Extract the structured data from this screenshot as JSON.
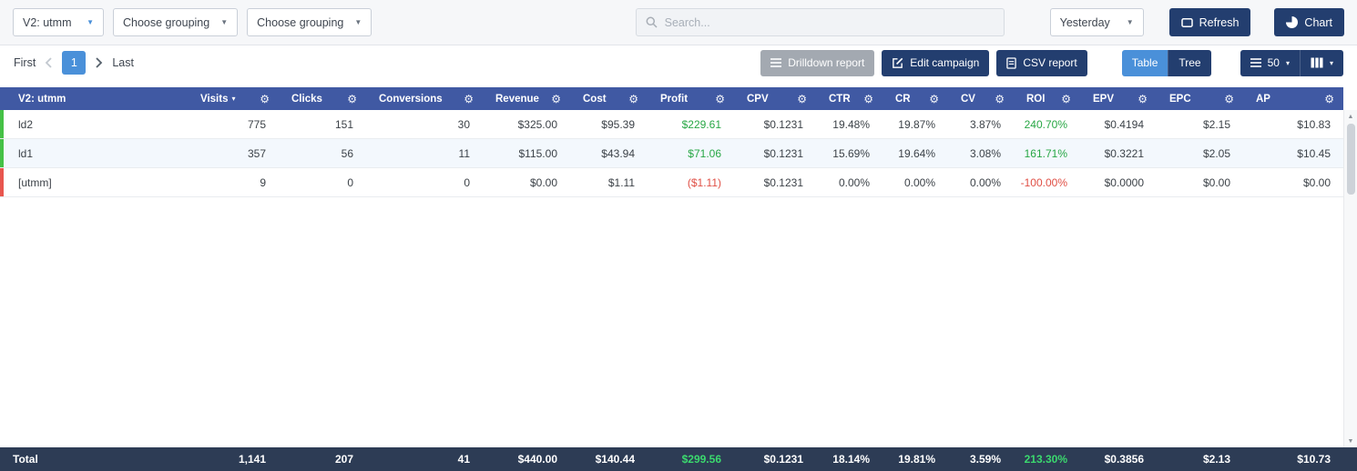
{
  "toolbar": {
    "campaign_select": "V2: utmm",
    "grouping_selects": [
      "Choose grouping",
      "Choose grouping"
    ],
    "search_placeholder": "Search...",
    "date_select": "Yesterday",
    "refresh_button": "Refresh",
    "chart_button": "Chart"
  },
  "pagination": {
    "first": "First",
    "current_page": "1",
    "last": "Last"
  },
  "actions": {
    "drilldown_report": "Drilldown report",
    "edit_campaign": "Edit campaign",
    "csv_report": "CSV report",
    "table_view": "Table",
    "tree_view": "Tree",
    "page_size": "50"
  },
  "icons": {
    "chevron_down": "▼",
    "chevron_down_small": "▾",
    "sort_caret": "▾",
    "column_settings": "⚙",
    "scroll_up": "▲",
    "scroll_down": "▼"
  },
  "colors": {
    "header_blue": "#4059a3",
    "footer_navy": "#2d3c55",
    "accent_blue": "#4a90d9",
    "navy_button": "#233e6f",
    "positive_green": "#28a745",
    "negative_red": "#e04f45"
  },
  "table": {
    "name_column": "V2: utmm",
    "columns": [
      {
        "label": "Visits",
        "sorted": true
      },
      {
        "label": "Clicks"
      },
      {
        "label": "Conversions"
      },
      {
        "label": "Revenue"
      },
      {
        "label": "Cost"
      },
      {
        "label": "Profit"
      },
      {
        "label": "CPV"
      },
      {
        "label": "CTR"
      },
      {
        "label": "CR"
      },
      {
        "label": "CV"
      },
      {
        "label": "ROI"
      },
      {
        "label": "EPV"
      },
      {
        "label": "EPC"
      },
      {
        "label": "AP"
      }
    ],
    "rows": [
      {
        "name": "ld2",
        "trend": "up",
        "values": [
          "775",
          "151",
          "30",
          "$325.00",
          "$95.39",
          "$229.61",
          "$0.1231",
          "19.48%",
          "19.87%",
          "3.87%",
          "240.70%",
          "$0.4194",
          "$2.15",
          "$10.83"
        ]
      },
      {
        "name": "ld1",
        "trend": "up",
        "values": [
          "357",
          "56",
          "11",
          "$115.00",
          "$43.94",
          "$71.06",
          "$0.1231",
          "15.69%",
          "19.64%",
          "3.08%",
          "161.71%",
          "$0.3221",
          "$2.05",
          "$10.45"
        ]
      },
      {
        "name": "[utmm]",
        "trend": "down",
        "values": [
          "9",
          "0",
          "0",
          "$0.00",
          "$1.11",
          "($1.11)",
          "$0.1231",
          "0.00%",
          "0.00%",
          "0.00%",
          "-100.00%",
          "$0.0000",
          "$0.00",
          "$0.00"
        ]
      }
    ],
    "total": {
      "label": "Total",
      "values": [
        "1,141",
        "207",
        "41",
        "$440.00",
        "$140.44",
        "$299.56",
        "$0.1231",
        "18.14%",
        "19.81%",
        "3.59%",
        "213.30%",
        "$0.3856",
        "$2.13",
        "$10.73"
      ]
    }
  }
}
